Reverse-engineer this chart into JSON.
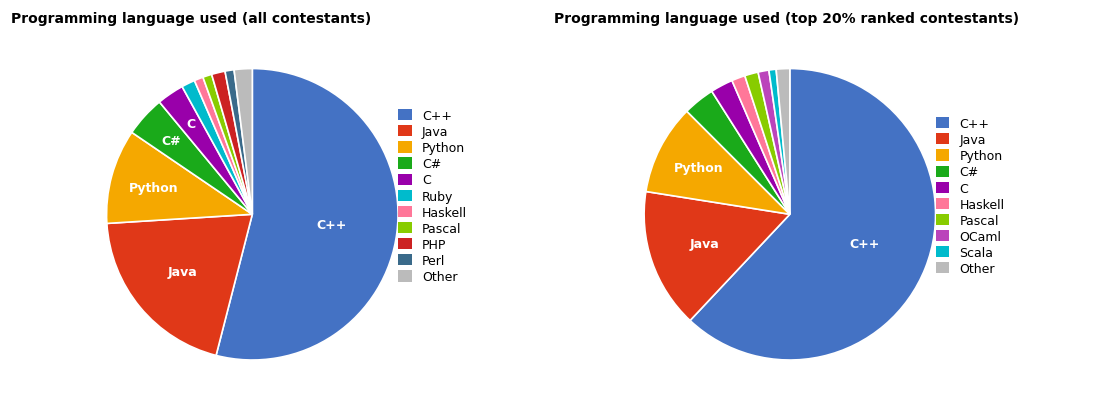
{
  "chart1": {
    "title": "Programming language used (all contestants)",
    "labels": [
      "C++",
      "Java",
      "Python",
      "C#",
      "C",
      "Ruby",
      "Haskell",
      "Pascal",
      "PHP",
      "Perl",
      "Other"
    ],
    "values": [
      54.0,
      20.0,
      10.5,
      4.5,
      3.0,
      1.5,
      1.0,
      1.0,
      1.5,
      1.0,
      2.0
    ],
    "colors": [
      "#4472C4",
      "#E03818",
      "#F5A800",
      "#1AAA1A",
      "#9900AA",
      "#00BBCC",
      "#FF7799",
      "#88CC00",
      "#CC2222",
      "#3A6A8A",
      "#BBBBBB"
    ],
    "show_labels": [
      true,
      true,
      true,
      true,
      true,
      false,
      false,
      false,
      false,
      false,
      false
    ],
    "legend_labels": [
      "C++",
      "Java",
      "Python",
      "C#",
      "C",
      "Ruby",
      "Haskell",
      "Pascal",
      "PHP",
      "Perl",
      "Other"
    ]
  },
  "chart2": {
    "title": "Programming language used (top 20% ranked contestants)",
    "labels": [
      "C++",
      "Java",
      "Python",
      "C#",
      "C",
      "Haskell",
      "Pascal",
      "OCaml",
      "Scala",
      "Other"
    ],
    "values": [
      62.0,
      15.5,
      10.0,
      3.5,
      2.5,
      1.5,
      1.5,
      1.2,
      0.8,
      1.5
    ],
    "colors": [
      "#4472C4",
      "#E03818",
      "#F5A800",
      "#1AAA1A",
      "#9900AA",
      "#FF7799",
      "#88CC00",
      "#BB44BB",
      "#00BBCC",
      "#BBBBBB"
    ],
    "show_labels": [
      true,
      true,
      true,
      false,
      false,
      false,
      false,
      false,
      false,
      false
    ],
    "legend_labels": [
      "C++",
      "Java",
      "Python",
      "C#",
      "C",
      "Haskell",
      "Pascal",
      "OCaml",
      "Scala",
      "Other"
    ]
  },
  "title_fontsize": 10,
  "label_fontsize": 9,
  "legend_fontsize": 9,
  "bg_color": "#FFFFFF"
}
